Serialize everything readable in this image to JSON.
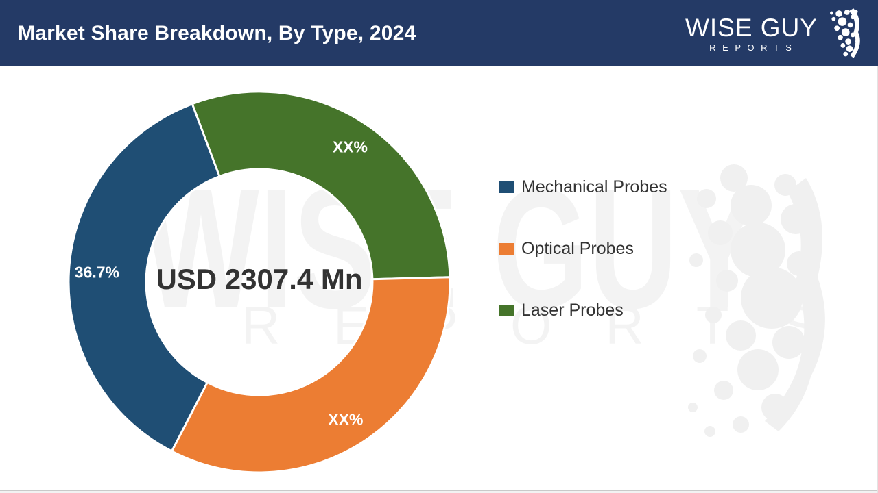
{
  "header": {
    "title": "Market Share Breakdown, By Type, 2024",
    "logo": {
      "line1": "WISE GUY",
      "line2": "R E P O R T S"
    }
  },
  "watermark": {
    "line1": "WISE GUY",
    "line2": "R E P O R T S"
  },
  "colors": {
    "header_bg": "#243A66",
    "blue": "#1F4E74",
    "orange": "#EC7D33",
    "green": "#45742A",
    "center_text": "#333333",
    "legend_text": "#333333",
    "watermark": "#F3F3F3",
    "slice_label_text": "#FFFFFF"
  },
  "chart_data": {
    "type": "pie",
    "subtype": "donut",
    "title": "Market Share Breakdown, By Type, 2024",
    "center_label": "USD 2307.4 Mn",
    "start_angle_deg": 207.3,
    "direction": "clockwise",
    "legend_position": "right",
    "slices": [
      {
        "name": "Mechanical Probes",
        "label": "36.7%",
        "value_pct": 36.7,
        "color_key": "blue"
      },
      {
        "name": "Laser Probes",
        "label": "XX%",
        "value_pct": 30.3,
        "color_key": "green"
      },
      {
        "name": "Optical Probes",
        "label": "XX%",
        "value_pct": 33.0,
        "color_key": "orange"
      }
    ]
  },
  "legend": {
    "items": [
      {
        "label": "Mechanical Probes",
        "color_key": "blue"
      },
      {
        "label": "Optical Probes",
        "color_key": "orange"
      },
      {
        "label": "Laser Probes",
        "color_key": "green"
      }
    ]
  }
}
